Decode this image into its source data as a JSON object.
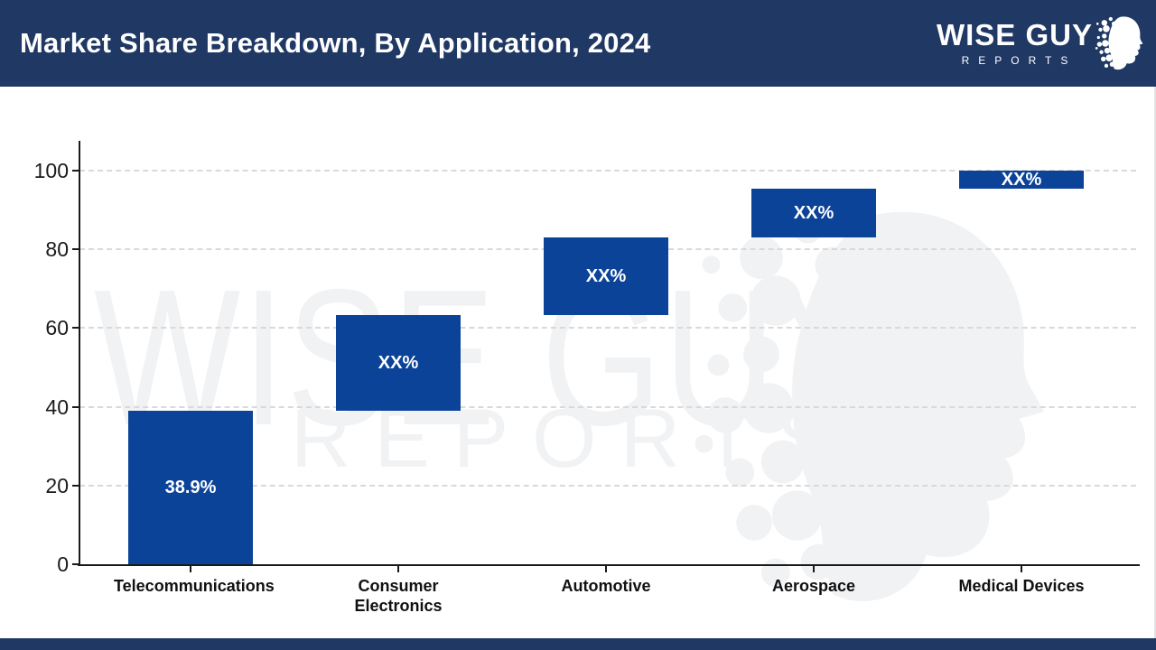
{
  "header": {
    "title": "Market Share Breakdown, By Application, 2024",
    "logo": {
      "name_top": "WISE GUY",
      "name_bottom": "REPORTS"
    }
  },
  "watermark": {
    "line1": "WISE GUY",
    "line2": "REPORTS"
  },
  "colors": {
    "header_bg": "#1f3864",
    "footer_bg": "#1f3864",
    "bar": "#0b4398",
    "bar_label": "#ffffff",
    "axis": "#1a1a1a",
    "grid": "#d9d9d9",
    "text": "#111111",
    "watermark": "#f1f2f4"
  },
  "chart_data": {
    "type": "bar",
    "subtype": "waterfall",
    "title": "Market Share Breakdown, By Application, 2024",
    "categories": [
      "Telecommunications",
      "Consumer Electronics",
      "Automotive",
      "Aerospace",
      "Medical Devices"
    ],
    "segments": [
      {
        "category": "Telecommunications",
        "start": 0,
        "end": 38.9,
        "label": "38.9%"
      },
      {
        "category": "Consumer Electronics",
        "start": 38.9,
        "end": 63.2,
        "label": "XX%"
      },
      {
        "category": "Automotive",
        "start": 63.2,
        "end": 83.0,
        "label": "XX%"
      },
      {
        "category": "Aerospace",
        "start": 83.0,
        "end": 95.5,
        "label": "XX%"
      },
      {
        "category": "Medical Devices",
        "start": 95.5,
        "end": 100,
        "label": "XX%"
      }
    ],
    "xlabel": "",
    "ylabel": "",
    "ylim": [
      0,
      100
    ],
    "yticks": [
      0,
      20,
      40,
      60,
      80,
      100
    ],
    "grid": "horizontal-dashed",
    "legend": "none"
  }
}
